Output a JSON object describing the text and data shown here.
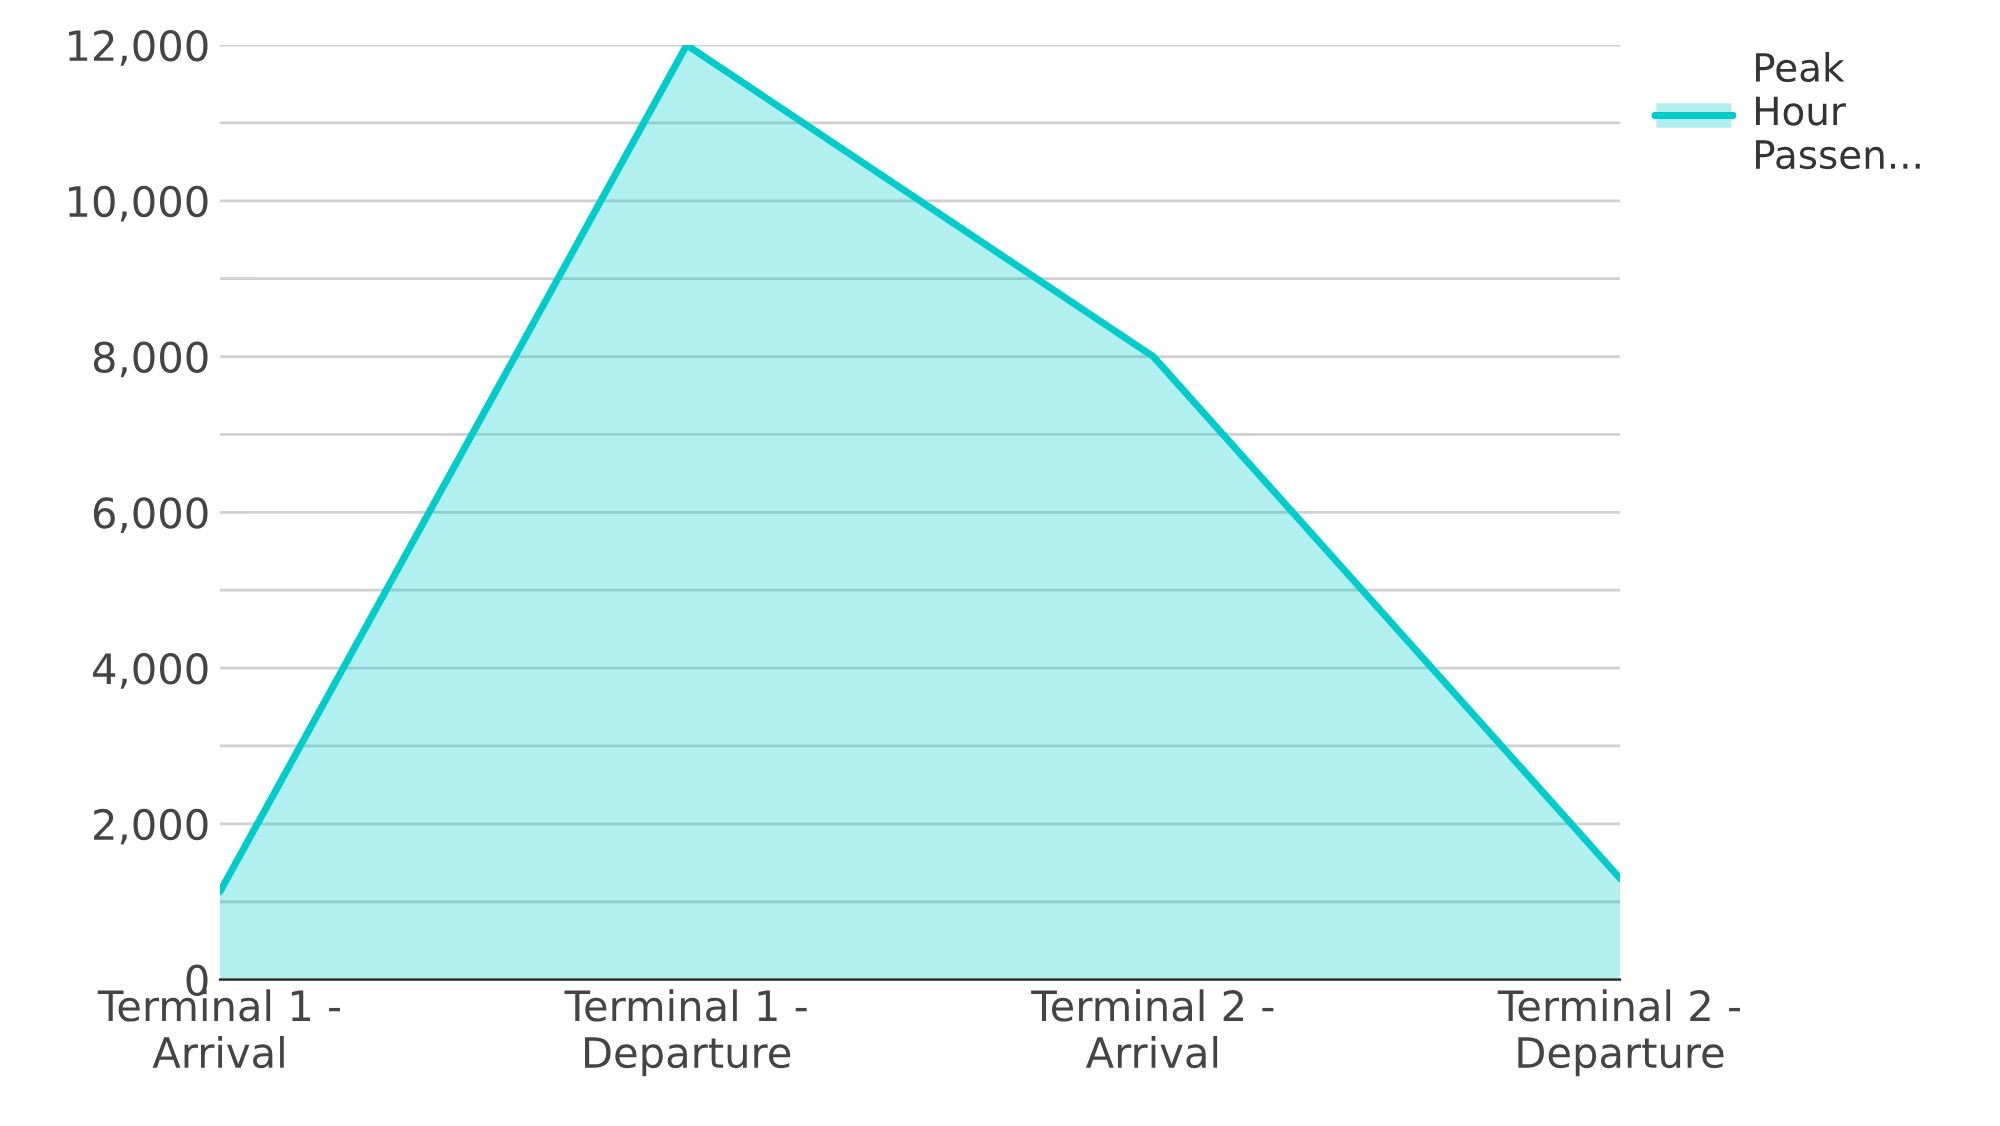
{
  "chart_data": {
    "type": "area",
    "categories": [
      "Terminal 1 -\nArrival",
      "Terminal 1 -\nDeparture",
      "Terminal 2 -\nArrival",
      "Terminal 2 -\nDeparture"
    ],
    "series": [
      {
        "name": "Peak\nHour\nPassen...",
        "color": "#00cccc",
        "values": [
          1130,
          12000,
          8000,
          1300
        ]
      }
    ],
    "ylim": [
      0,
      12000
    ],
    "yticks": [
      0,
      {
        "value": 1000,
        "label": null
      },
      {
        "value": 2000,
        "label": "2,000"
      },
      {
        "value": 3000,
        "label": null
      },
      {
        "value": 4000,
        "label": "4,000"
      },
      {
        "value": 5000,
        "label": null
      },
      {
        "value": 6000,
        "label": "6,000"
      },
      {
        "value": 7000,
        "label": null
      },
      {
        "value": 8000,
        "label": "8,000"
      },
      {
        "value": 9000,
        "label": null
      },
      {
        "value": 10000,
        "label": "10,000"
      },
      {
        "value": 11000,
        "label": null
      },
      {
        "value": 12000,
        "label": "12,000"
      }
    ],
    "grid": "y",
    "legend": "top right"
  }
}
